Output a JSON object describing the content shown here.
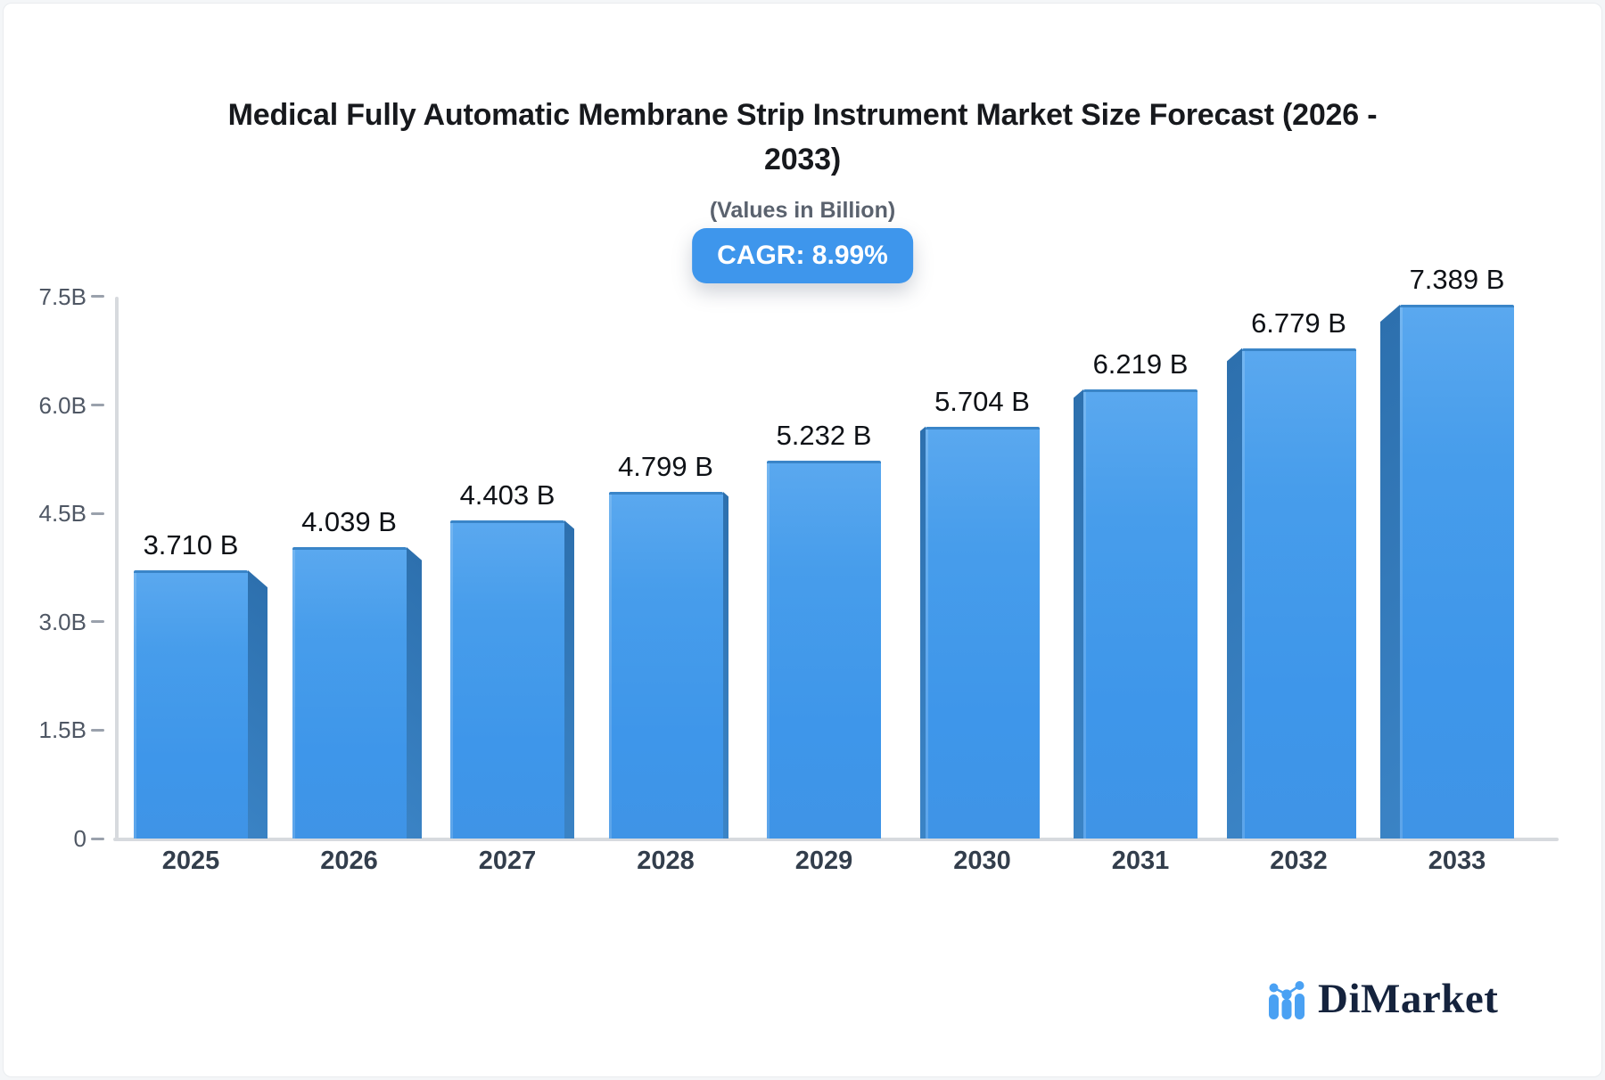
{
  "title": {
    "line1": "Medical Fully Automatic Membrane Strip Instrument Market Size Forecast (2026 -",
    "line2": "2033)"
  },
  "subtitle": "(Values in Billion)",
  "badge": {
    "label": "CAGR: 8.99%"
  },
  "brand": {
    "name": "DiMarket"
  },
  "chart_data": {
    "type": "bar",
    "title": "Medical Fully Automatic Membrane Strip Instrument Market Size Forecast (2026 - 2033)",
    "subtitle": "(Values in Billion)",
    "cagr": "8.99%",
    "categories": [
      "2025",
      "2026",
      "2027",
      "2028",
      "2029",
      "2030",
      "2031",
      "2032",
      "2033"
    ],
    "values": [
      3.71,
      4.039,
      4.403,
      4.799,
      5.232,
      5.704,
      6.219,
      6.779,
      7.389
    ],
    "value_labels": [
      "3.710 B",
      "4.039 B",
      "4.403 B",
      "4.799 B",
      "5.232 B",
      "5.704 B",
      "6.219 B",
      "6.779 B",
      "7.389 B"
    ],
    "y_tick_labels": [
      "0",
      "1.5B",
      "3.0B",
      "4.5B",
      "6.0B",
      "7.5B"
    ],
    "y_tick_values": [
      0,
      1.5,
      3.0,
      4.5,
      6.0,
      7.5
    ],
    "ylim": [
      0,
      7.5
    ],
    "grid": false,
    "legend": false,
    "style": "3d-bars-center-perspective",
    "colors": {
      "bar_face": "#3e96ea",
      "bar_face_light": "#5aa8ef",
      "bar_side": "#2f76b7",
      "bar_top_edge": "#3a85c8",
      "axis_line": "#d7dade",
      "tick_dash": "#9aa1ac",
      "y_label": "#4f5764",
      "x_label": "#333e4c",
      "value_label": "#0e1116",
      "badge_bg": "#3e96ec",
      "logo_blue": "#4aa1f3",
      "logo_navy": "#15233d"
    }
  }
}
